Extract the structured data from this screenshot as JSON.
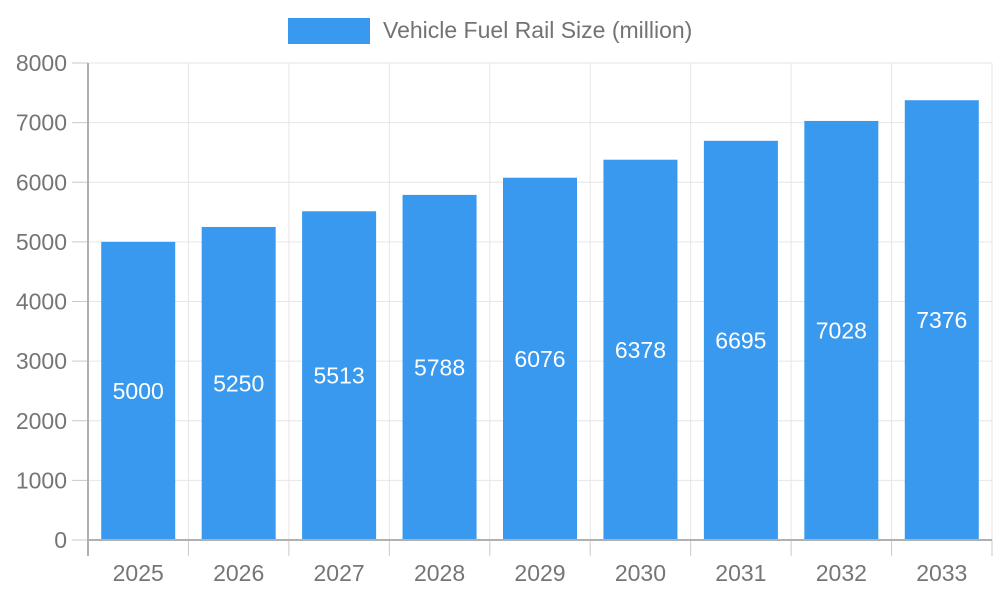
{
  "chart_data": {
    "type": "bar",
    "title": "Vehicle Fuel Rail Size (million)",
    "categories": [
      "2025",
      "2026",
      "2027",
      "2028",
      "2029",
      "2030",
      "2031",
      "2032",
      "2033"
    ],
    "values": [
      5000,
      5250,
      5513,
      5788,
      6076,
      6378,
      6695,
      7028,
      7376
    ],
    "xlabel": "",
    "ylabel": "",
    "ylim": [
      0,
      8000
    ],
    "yticks": [
      0,
      1000,
      2000,
      3000,
      4000,
      5000,
      6000,
      7000,
      8000
    ],
    "grid": true,
    "legend_position": "top",
    "value_label_position": "inside-center",
    "colors": {
      "bar": "#3999ee",
      "bar_label": "#ffffff",
      "axis_text": "#757575",
      "legend_text": "#737373",
      "grid_line": "#e6e6e6",
      "tick_line": "#c9c9c9",
      "axis_line": "#b0b0b0",
      "background": "#ffffff"
    }
  }
}
